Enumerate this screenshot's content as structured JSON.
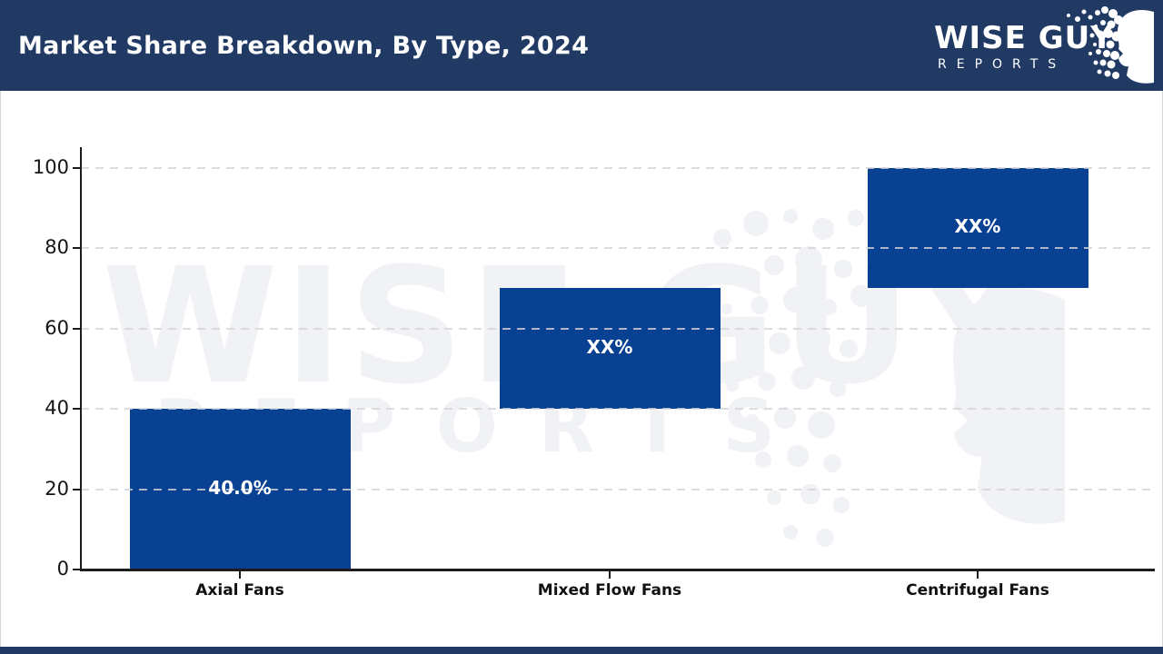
{
  "header": {
    "title": "Market Share Breakdown, By Type, 2024",
    "bg_color": "#203a64",
    "logo": {
      "line1": "WISE GUY",
      "line2": "REPORTS"
    }
  },
  "watermark": {
    "line1": "WISE GUY",
    "line2": "REPORTS"
  },
  "chart_data": {
    "type": "bar",
    "subtype": "floating-segment (waterfall-style market share)",
    "title": "Market Share Breakdown, By Type, 2024",
    "categories": [
      "Axial Fans",
      "Mixed Flow Fans",
      "Centrifugal Fans"
    ],
    "bars": [
      {
        "category": "Axial Fans",
        "from": 0,
        "to": 40,
        "label": "40.0%"
      },
      {
        "category": "Mixed Flow Fans",
        "from": 40,
        "to": 70,
        "label": "XX%"
      },
      {
        "category": "Centrifugal Fans",
        "from": 70,
        "to": 100,
        "label": "XX%"
      }
    ],
    "xlabel": "",
    "ylabel": "",
    "ylim": [
      0,
      100
    ],
    "yticks": [
      0,
      20,
      40,
      60,
      80,
      100
    ],
    "grid": "horizontal dashed, drawn over bars",
    "legend": "none",
    "bar_color": "#084092",
    "bar_label_color": "#ffffff",
    "axis_color": "#1c1c1c"
  },
  "footer": {
    "bg_color": "#203a64"
  }
}
